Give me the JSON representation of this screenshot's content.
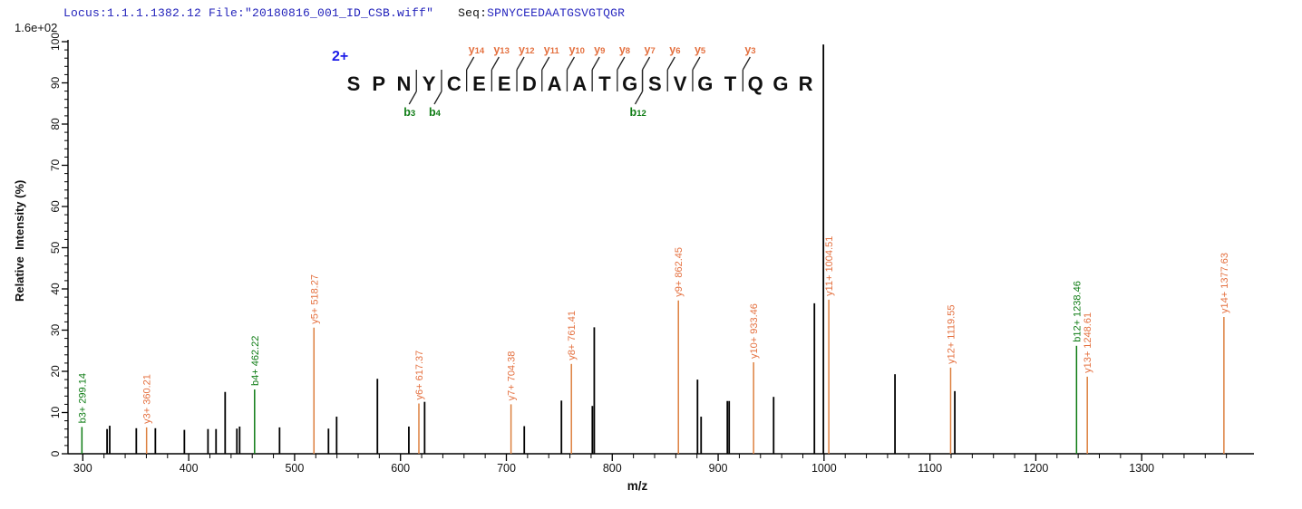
{
  "header": {
    "locus_file": "Locus:1.1.1.1382.12 File:\"20180816_001_ID_CSB.wiff\"",
    "seq_label": "Seq:",
    "seq_value": "SPNYCEEDAATGSVGTQGR"
  },
  "scale_note": "1.6e+02",
  "peptide": {
    "charge": "2+",
    "sequence": "SPNYCEEDAATGSVGTQGR",
    "b_markers": [
      {
        "ion": "b3",
        "prefix": "b",
        "num": "3",
        "after_index": 2
      },
      {
        "ion": "b4",
        "prefix": "b",
        "num": "4",
        "after_index": 3
      },
      {
        "ion": "b12",
        "prefix": "b",
        "num": "12",
        "after_index": 11
      }
    ],
    "y_markers": [
      {
        "ion": "y14",
        "prefix": "y",
        "num": "14",
        "after_index": 4
      },
      {
        "ion": "y13",
        "prefix": "y",
        "num": "13",
        "after_index": 5
      },
      {
        "ion": "y12",
        "prefix": "y",
        "num": "12",
        "after_index": 6
      },
      {
        "ion": "y11",
        "prefix": "y",
        "num": "11",
        "after_index": 7
      },
      {
        "ion": "y10",
        "prefix": "y",
        "num": "10",
        "after_index": 8
      },
      {
        "ion": "y9",
        "prefix": "y",
        "num": "9",
        "after_index": 9
      },
      {
        "ion": "y8",
        "prefix": "y",
        "num": "8",
        "after_index": 10
      },
      {
        "ion": "y7",
        "prefix": "y",
        "num": "7",
        "after_index": 11
      },
      {
        "ion": "y6",
        "prefix": "y",
        "num": "6",
        "after_index": 12
      },
      {
        "ion": "y5",
        "prefix": "y",
        "num": "5",
        "after_index": 13
      },
      {
        "ion": "y3",
        "prefix": "y",
        "num": "3",
        "after_index": 15
      }
    ]
  },
  "colors": {
    "b_ion": "#0e7c14",
    "y_ion_line": "#dd803f",
    "y_ion_label": "#e4703f",
    "unassigned": "#000000",
    "axis": "#000000",
    "header_blue": "#2323bb",
    "charge_blue": "#1a1ae8"
  },
  "chart_data": {
    "type": "bar",
    "subtype": "ms2-stick-spectrum",
    "title": "",
    "xlabel": "m/z",
    "ylabel": "Relative  Intensity (%)",
    "intensity_scale": "1.6e+02",
    "xlim": [
      286,
      1406
    ],
    "ylim": [
      0,
      100
    ],
    "x_major_ticks": [
      300,
      400,
      500,
      600,
      700,
      800,
      900,
      1000,
      1100,
      1200,
      1300
    ],
    "x_minor_step": 20,
    "x_minor_range": [
      320,
      1380
    ],
    "y_major_ticks": [
      0,
      10,
      20,
      30,
      40,
      50,
      60,
      70,
      80,
      90,
      100
    ],
    "y_minor_step": 2,
    "grid": false,
    "legend": false,
    "series": [
      {
        "name": "unassigned",
        "color": "#000000",
        "points": [
          {
            "mz": 322.9,
            "intensity": 6.0
          },
          {
            "mz": 325.4,
            "intensity": 6.8
          },
          {
            "mz": 350.5,
            "intensity": 6.2
          },
          {
            "mz": 368.5,
            "intensity": 6.2
          },
          {
            "mz": 395.9,
            "intensity": 5.8
          },
          {
            "mz": 418.2,
            "intensity": 6.0
          },
          {
            "mz": 425.8,
            "intensity": 6.0
          },
          {
            "mz": 434.4,
            "intensity": 15.0
          },
          {
            "mz": 445.5,
            "intensity": 6.1
          },
          {
            "mz": 448.1,
            "intensity": 6.6
          },
          {
            "mz": 485.8,
            "intensity": 6.4
          },
          {
            "mz": 532.0,
            "intensity": 6.1
          },
          {
            "mz": 539.7,
            "intensity": 9.0
          },
          {
            "mz": 578.2,
            "intensity": 18.2
          },
          {
            "mz": 607.9,
            "intensity": 6.6
          },
          {
            "mz": 622.8,
            "intensity": 12.6
          },
          {
            "mz": 716.9,
            "intensity": 6.7
          },
          {
            "mz": 752.0,
            "intensity": 12.9
          },
          {
            "mz": 781.2,
            "intensity": 11.6
          },
          {
            "mz": 783.0,
            "intensity": 30.7
          },
          {
            "mz": 880.5,
            "intensity": 18.0
          },
          {
            "mz": 883.9,
            "intensity": 9.0
          },
          {
            "mz": 908.7,
            "intensity": 12.8
          },
          {
            "mz": 910.4,
            "intensity": 12.8
          },
          {
            "mz": 952.4,
            "intensity": 13.8
          },
          {
            "mz": 990.9,
            "intensity": 36.5
          },
          {
            "mz": 999.4,
            "intensity": 99.3
          },
          {
            "mz": 1067.0,
            "intensity": 19.3
          },
          {
            "mz": 1123.5,
            "intensity": 15.2
          }
        ]
      },
      {
        "name": "b-ions",
        "color": "#0e7c14",
        "label_color": "#0e7c14",
        "points": [
          {
            "mz": 299.14,
            "intensity": 6.5,
            "label": "b3+ 299.14"
          },
          {
            "mz": 462.22,
            "intensity": 15.6,
            "label": "b4+ 462.22"
          },
          {
            "mz": 1238.46,
            "intensity": 26.2,
            "label": "b12+ 1238.46"
          }
        ]
      },
      {
        "name": "y-ions",
        "color": "#dd803f",
        "label_color": "#e4703f",
        "points": [
          {
            "mz": 360.21,
            "intensity": 6.4,
            "label": "y3+ 360.21"
          },
          {
            "mz": 518.27,
            "intensity": 30.6,
            "label": "y5+ 518.27"
          },
          {
            "mz": 617.37,
            "intensity": 12.2,
            "label": "y6+ 617.37"
          },
          {
            "mz": 704.38,
            "intensity": 12.0,
            "label": "y7+ 704.38"
          },
          {
            "mz": 761.41,
            "intensity": 21.8,
            "label": "y8+ 761.41"
          },
          {
            "mz": 862.45,
            "intensity": 37.2,
            "label": "y9+ 862.45"
          },
          {
            "mz": 933.46,
            "intensity": 22.2,
            "label": "y10+ 933.46"
          },
          {
            "mz": 1004.51,
            "intensity": 37.4,
            "label": "y11+ 1004.51"
          },
          {
            "mz": 1119.55,
            "intensity": 20.9,
            "label": "y12+ 1119.55"
          },
          {
            "mz": 1248.61,
            "intensity": 18.7,
            "label": "y13+ 1248.61"
          },
          {
            "mz": 1377.63,
            "intensity": 33.2,
            "label": "y14+ 1377.63"
          }
        ]
      }
    ]
  }
}
